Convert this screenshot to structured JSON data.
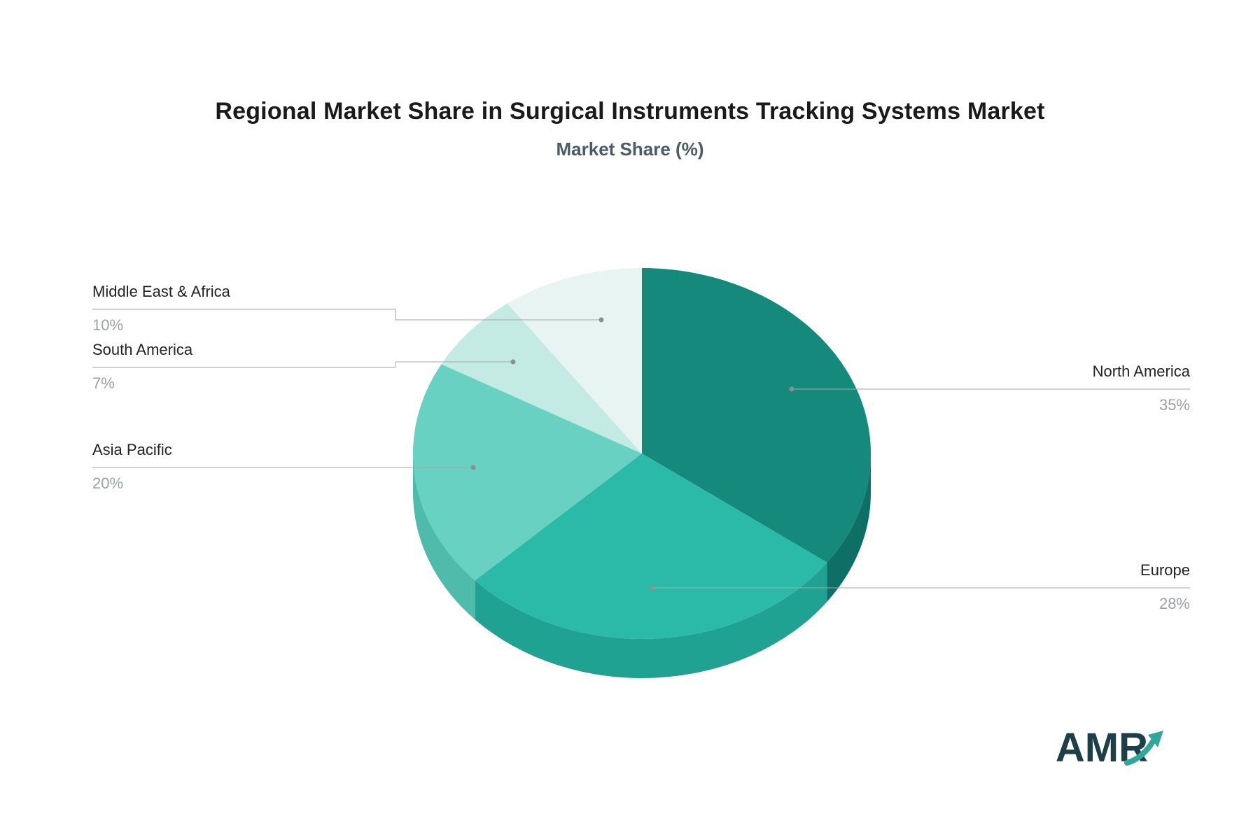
{
  "page": {
    "background": "#ffffff"
  },
  "chart_data": {
    "type": "pie",
    "title": "Regional Market Share in Surgical Instruments Tracking Systems Market",
    "subtitle": "Market Share (%)",
    "unit": "%",
    "effect": "3d",
    "start_angle_deg": 0,
    "direction": "clockwise",
    "legend_position": "none",
    "slices": [
      {
        "label": "North America",
        "value": 35,
        "value_label": "35%",
        "color": "#15897c",
        "rim_color": "#0d6f65"
      },
      {
        "label": "Europe",
        "value": 28,
        "value_label": "28%",
        "color": "#2cbaa8",
        "rim_color": "#1fa291"
      },
      {
        "label": "Asia Pacific",
        "value": 20,
        "value_label": "20%",
        "color": "#69d1c1",
        "rim_color": "#4fbcab"
      },
      {
        "label": "South America",
        "value": 7,
        "value_label": "7%",
        "color": "#c3eae3",
        "rim_color": "#aad8d0"
      },
      {
        "label": "Middle East & Africa",
        "value": 10,
        "value_label": "10%",
        "color": "#e7f4f1",
        "rim_color": "#d2e7e2"
      }
    ]
  },
  "branding": {
    "logo_text": "AMR"
  },
  "colors": {
    "leader_line": "#a6a6a6",
    "leader_dot": "#8a8f93",
    "label_text": "#232323",
    "value_text": "#9ba1a6",
    "title_text": "#1a1a1a",
    "subtitle_text": "#4a5b68",
    "logo_text": "#1d4048",
    "logo_arrow": "#2fa89a"
  }
}
